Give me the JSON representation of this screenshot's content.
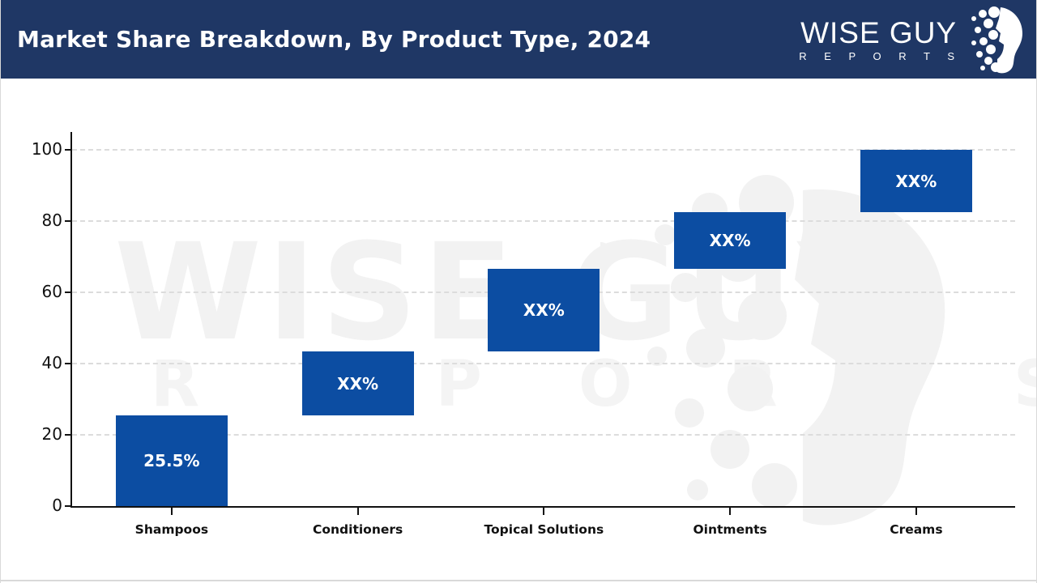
{
  "header": {
    "title": "Market Share Breakdown, By Product Type, 2024",
    "logo": {
      "line1": "WISE GUY",
      "line2": "R E P O R T S"
    }
  },
  "watermark": {
    "line1": "WISE GUY",
    "line2": "R E P O R T S"
  },
  "chart_data": {
    "type": "bar",
    "subtype": "waterfall",
    "title": "Market Share Breakdown, By Product Type, 2024",
    "categories": [
      "Shampoos",
      "Conditioners",
      "Topical Solutions",
      "Ointments",
      "Creams"
    ],
    "segments": [
      {
        "category": "Shampoos",
        "start": 0,
        "end": 25.5,
        "label": "25.5%"
      },
      {
        "category": "Conditioners",
        "start": 25.5,
        "end": 43.3,
        "label": "XX%"
      },
      {
        "category": "Topical Solutions",
        "start": 43.3,
        "end": 66.6,
        "label": "XX%"
      },
      {
        "category": "Ointments",
        "start": 66.6,
        "end": 82.5,
        "label": "XX%"
      },
      {
        "category": "Creams",
        "start": 82.5,
        "end": 100,
        "label": "XX%"
      }
    ],
    "xlabel": "",
    "ylabel": "",
    "ylim": [
      0,
      105
    ],
    "yticks": [
      0,
      20,
      40,
      60,
      80,
      100
    ],
    "grid": "horizontal-dashed",
    "legend": "none",
    "bar_color": "#0c4da2",
    "bar_label_color": "#ffffff"
  },
  "colors": {
    "header_bg": "#1f3765",
    "axis": "#111111",
    "gridline": "#dcdcdc",
    "watermark": "#f2f2f2"
  }
}
